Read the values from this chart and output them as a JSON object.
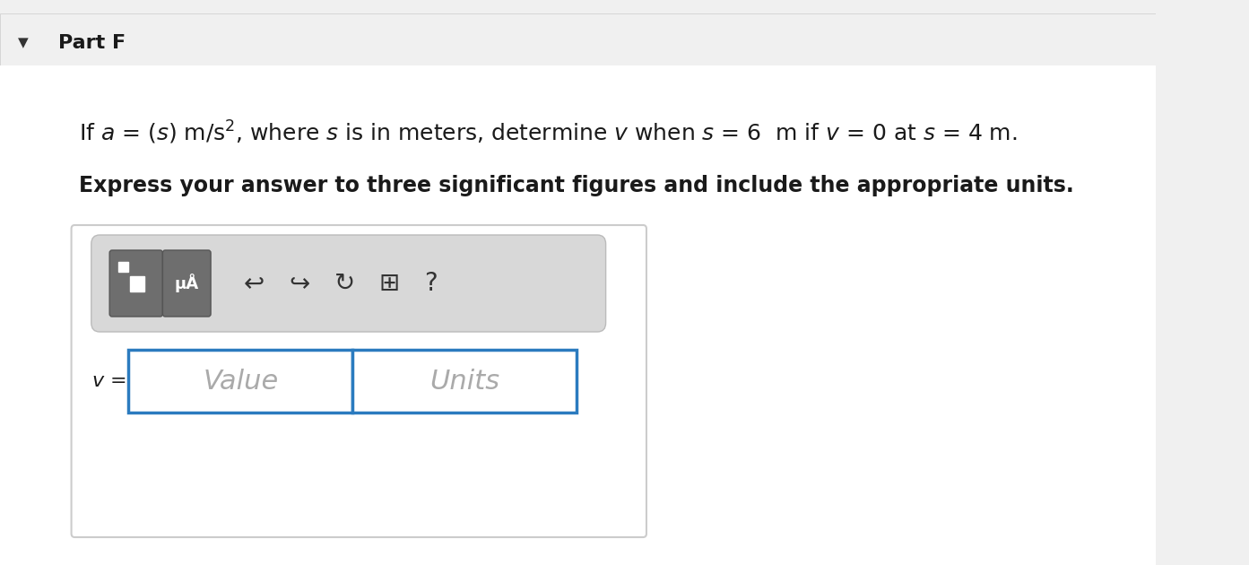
{
  "bg_color": "#f0f0f0",
  "white_bg": "#ffffff",
  "title": "Part F",
  "arrow_color": "#333333",
  "line1_parts": [
    {
      "text": "If ",
      "style": "normal",
      "size": 18
    },
    {
      "text": "a",
      "style": "italic",
      "size": 18
    },
    {
      "text": " = (",
      "style": "normal",
      "size": 18
    },
    {
      "text": "s",
      "style": "italic",
      "size": 18
    },
    {
      "text": ") m/s",
      "style": "normal",
      "size": 18
    },
    {
      "text": "2",
      "style": "super",
      "size": 12
    },
    {
      "text": ", where ",
      "style": "normal",
      "size": 18
    },
    {
      "text": "s",
      "style": "italic",
      "size": 18
    },
    {
      "text": " is in meters, determine ",
      "style": "normal",
      "size": 18
    },
    {
      "text": "v",
      "style": "italic",
      "size": 18
    },
    {
      "text": " when ",
      "style": "normal",
      "size": 18
    },
    {
      "text": "s",
      "style": "italic",
      "size": 18
    },
    {
      "text": " = 6  m if ",
      "style": "normal",
      "size": 18
    },
    {
      "text": "v",
      "style": "italic",
      "size": 18
    },
    {
      "text": " = 0 at ",
      "style": "normal",
      "size": 18
    },
    {
      "text": "s",
      "style": "italic",
      "size": 18
    },
    {
      "text": " = 4 m.",
      "style": "normal",
      "size": 18
    }
  ],
  "line2": "Express your answer to three significant figures and include the appropriate units.",
  "input_label": "v =",
  "input_placeholder1": "Value",
  "input_placeholder2": "Units",
  "toolbar_bg": "#d8d8d8",
  "toolbar_btn_bg": "#6e6e6e",
  "input_border_color": "#2b7bbf",
  "outer_box_border": "#cccccc",
  "outer_box_bg": "#ffffff",
  "placeholder_color": "#aaaaaa"
}
